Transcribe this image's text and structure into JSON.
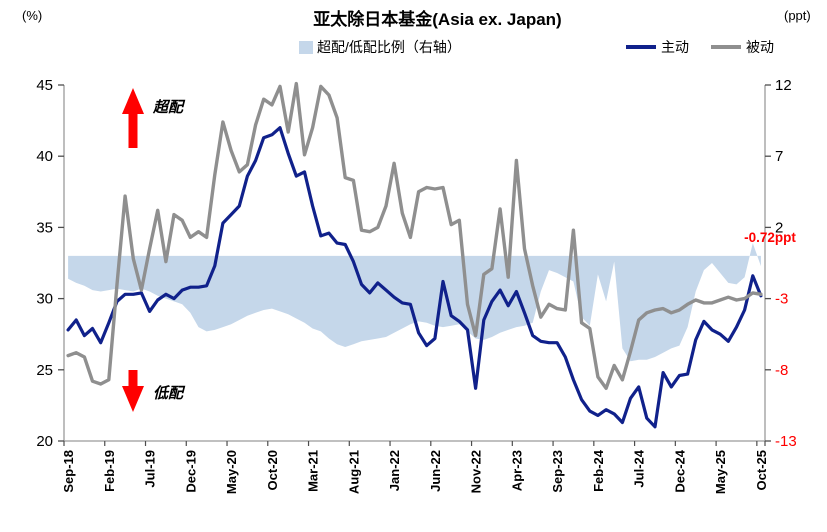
{
  "header": {
    "title": "亚太除日本基金(Asia ex. Japan)",
    "left_unit": "(%)",
    "right_unit": "(ppt)"
  },
  "legend": [
    {
      "label": "超配/低配比例（右轴）",
      "swatch": "area"
    },
    {
      "label": "主动",
      "swatch": "line-active"
    },
    {
      "label": "被动",
      "swatch": "line-passive"
    }
  ],
  "annotations": {
    "overweight_label": "超配",
    "underweight_label": "低配",
    "last_value_label": "-0.72ppt"
  },
  "colors": {
    "active": "#10218b",
    "passive": "#8f8f8f",
    "area": "#c5d7ea",
    "red": "#ff0000",
    "axis_line": "#9b9b9b",
    "tick": "#4d4d4d",
    "text": "#000000"
  },
  "chart_data": {
    "type": "line+area",
    "title": "亚太除日本基金(Asia ex. Japan)",
    "left_axis": {
      "unit": "%",
      "ticks": [
        20,
        25,
        30,
        35,
        40,
        45
      ],
      "range": [
        20,
        45
      ]
    },
    "right_axis": {
      "unit": "ppt",
      "ticks": [
        -13,
        -8,
        -3,
        2,
        7,
        12
      ],
      "range": [
        -13,
        12
      ],
      "negative_label_color": "#ff0000"
    },
    "x_tick_labels": [
      "Sep-18",
      "Feb-19",
      "Jul-19",
      "Dec-19",
      "May-20",
      "Oct-20",
      "Mar-21",
      "Aug-21",
      "Jan-22",
      "Jun-22",
      "Nov-22",
      "Apr-23",
      "Sep-23",
      "Feb-24",
      "Jul-24",
      "Dec-24",
      "May-25",
      "Oct-25"
    ],
    "months": [
      "Sep-18",
      "Oct-18",
      "Nov-18",
      "Dec-18",
      "Jan-19",
      "Feb-19",
      "Mar-19",
      "Apr-19",
      "May-19",
      "Jun-19",
      "Jul-19",
      "Aug-19",
      "Sep-19",
      "Oct-19",
      "Nov-19",
      "Dec-19",
      "Jan-20",
      "Feb-20",
      "Mar-20",
      "Apr-20",
      "May-20",
      "Jun-20",
      "Jul-20",
      "Aug-20",
      "Sep-20",
      "Oct-20",
      "Nov-20",
      "Dec-20",
      "Jan-21",
      "Feb-21",
      "Mar-21",
      "Apr-21",
      "May-21",
      "Jun-21",
      "Jul-21",
      "Aug-21",
      "Sep-21",
      "Oct-21",
      "Nov-21",
      "Dec-21",
      "Jan-22",
      "Feb-22",
      "Mar-22",
      "Apr-22",
      "May-22",
      "Jun-22",
      "Jul-22",
      "Aug-22",
      "Sep-22",
      "Oct-22",
      "Nov-22",
      "Dec-22",
      "Jan-23",
      "Feb-23",
      "Mar-23",
      "Apr-23",
      "May-23",
      "Jun-23",
      "Jul-23",
      "Aug-23",
      "Sep-23",
      "Oct-23",
      "Nov-23",
      "Dec-23",
      "Jan-24",
      "Feb-24",
      "Mar-24",
      "Apr-24",
      "May-24",
      "Jun-24",
      "Jul-24",
      "Aug-24",
      "Sep-24",
      "Oct-24",
      "Nov-24",
      "Dec-24",
      "Jan-25",
      "Feb-25",
      "Mar-25",
      "Apr-25",
      "May-25",
      "Jun-25",
      "Jul-25",
      "Aug-25",
      "Sep-25",
      "Oct-25"
    ],
    "series": [
      {
        "name": "超配/低配比例（右轴）",
        "type": "area",
        "axis": "right",
        "values": [
          -1.6,
          -1.9,
          -2.1,
          -2.4,
          -2.5,
          -2.4,
          -2.3,
          -2.4,
          -2.5,
          -2.3,
          -2.5,
          -2.8,
          -3.0,
          -3.2,
          -3.4,
          -4.0,
          -5.0,
          -5.3,
          -5.2,
          -5.0,
          -4.8,
          -4.5,
          -4.2,
          -4.0,
          -3.8,
          -3.7,
          -3.9,
          -4.1,
          -4.4,
          -4.7,
          -5.1,
          -5.3,
          -5.8,
          -6.2,
          -6.4,
          -6.2,
          -6.0,
          -5.9,
          -5.8,
          -5.7,
          -5.4,
          -5.1,
          -4.8,
          -4.6,
          -4.7,
          -4.9,
          -5.0,
          -4.9,
          -4.8,
          -5.3,
          -5.8,
          -5.9,
          -5.7,
          -5.4,
          -5.2,
          -5.0,
          -4.9,
          -4.7,
          -2.5,
          -1.0,
          -1.2,
          -1.5,
          -1.8,
          -4.3,
          -4.9,
          -1.3,
          -3.2,
          -0.4,
          -6.5,
          -7.4,
          -7.3,
          -7.3,
          -7.1,
          -6.8,
          -6.5,
          -6.3,
          -5.0,
          -2.5,
          -1.0,
          -0.5,
          -1.2,
          -1.9,
          -2.0,
          -1.5,
          0.9,
          -0.72
        ]
      },
      {
        "name": "主动",
        "type": "line",
        "axis": "left",
        "values": [
          27.8,
          28.5,
          27.4,
          27.9,
          26.9,
          28.3,
          29.8,
          30.3,
          30.3,
          30.4,
          29.1,
          29.9,
          30.3,
          30.0,
          30.6,
          30.8,
          30.8,
          30.9,
          32.3,
          35.3,
          35.9,
          36.5,
          38.6,
          39.7,
          41.3,
          41.5,
          42.0,
          40.2,
          38.6,
          38.9,
          36.5,
          34.4,
          34.6,
          33.9,
          33.8,
          32.6,
          31.0,
          30.4,
          31.1,
          30.6,
          30.1,
          29.7,
          29.6,
          27.6,
          26.7,
          27.2,
          31.2,
          28.8,
          28.4,
          27.8,
          23.7,
          28.5,
          29.8,
          30.6,
          29.5,
          30.5,
          29.0,
          27.4,
          27.0,
          26.9,
          26.9,
          25.9,
          24.3,
          22.9,
          22.1,
          21.8,
          22.2,
          21.9,
          21.3,
          23.0,
          23.8,
          21.6,
          21.0,
          24.8,
          23.8,
          24.6,
          24.7,
          27.1,
          28.4,
          27.8,
          27.5,
          27.0,
          28.0,
          29.2,
          31.6,
          30.2
        ]
      },
      {
        "name": "被动",
        "type": "line",
        "axis": "left",
        "values": [
          26.0,
          26.2,
          25.9,
          24.2,
          24.0,
          24.3,
          31.0,
          37.2,
          32.8,
          30.6,
          33.5,
          36.2,
          32.6,
          35.9,
          35.5,
          34.3,
          34.7,
          34.3,
          38.7,
          42.4,
          40.4,
          38.9,
          39.4,
          42.2,
          44.0,
          43.6,
          44.9,
          41.7,
          45.1,
          40.1,
          42.0,
          44.9,
          44.3,
          42.7,
          38.5,
          38.3,
          34.8,
          34.7,
          35.0,
          36.5,
          39.5,
          36.0,
          34.3,
          37.5,
          37.8,
          37.7,
          37.8,
          35.2,
          35.5,
          29.6,
          27.4,
          31.7,
          32.1,
          36.3,
          31.5,
          39.7,
          33.5,
          30.9,
          28.7,
          29.6,
          29.3,
          29.2,
          34.8,
          28.3,
          27.9,
          24.5,
          23.7,
          25.3,
          24.3,
          26.3,
          28.5,
          29.0,
          29.2,
          29.3,
          29.0,
          29.2,
          29.6,
          29.9,
          29.7,
          29.7,
          29.9,
          30.1,
          29.9,
          30.0,
          30.4,
          30.3
        ]
      }
    ],
    "last_point": {
      "series": "超配/低配比例（右轴）",
      "value": -0.72,
      "label": "-0.72ppt"
    },
    "grid": "off",
    "legend_position": "top"
  }
}
